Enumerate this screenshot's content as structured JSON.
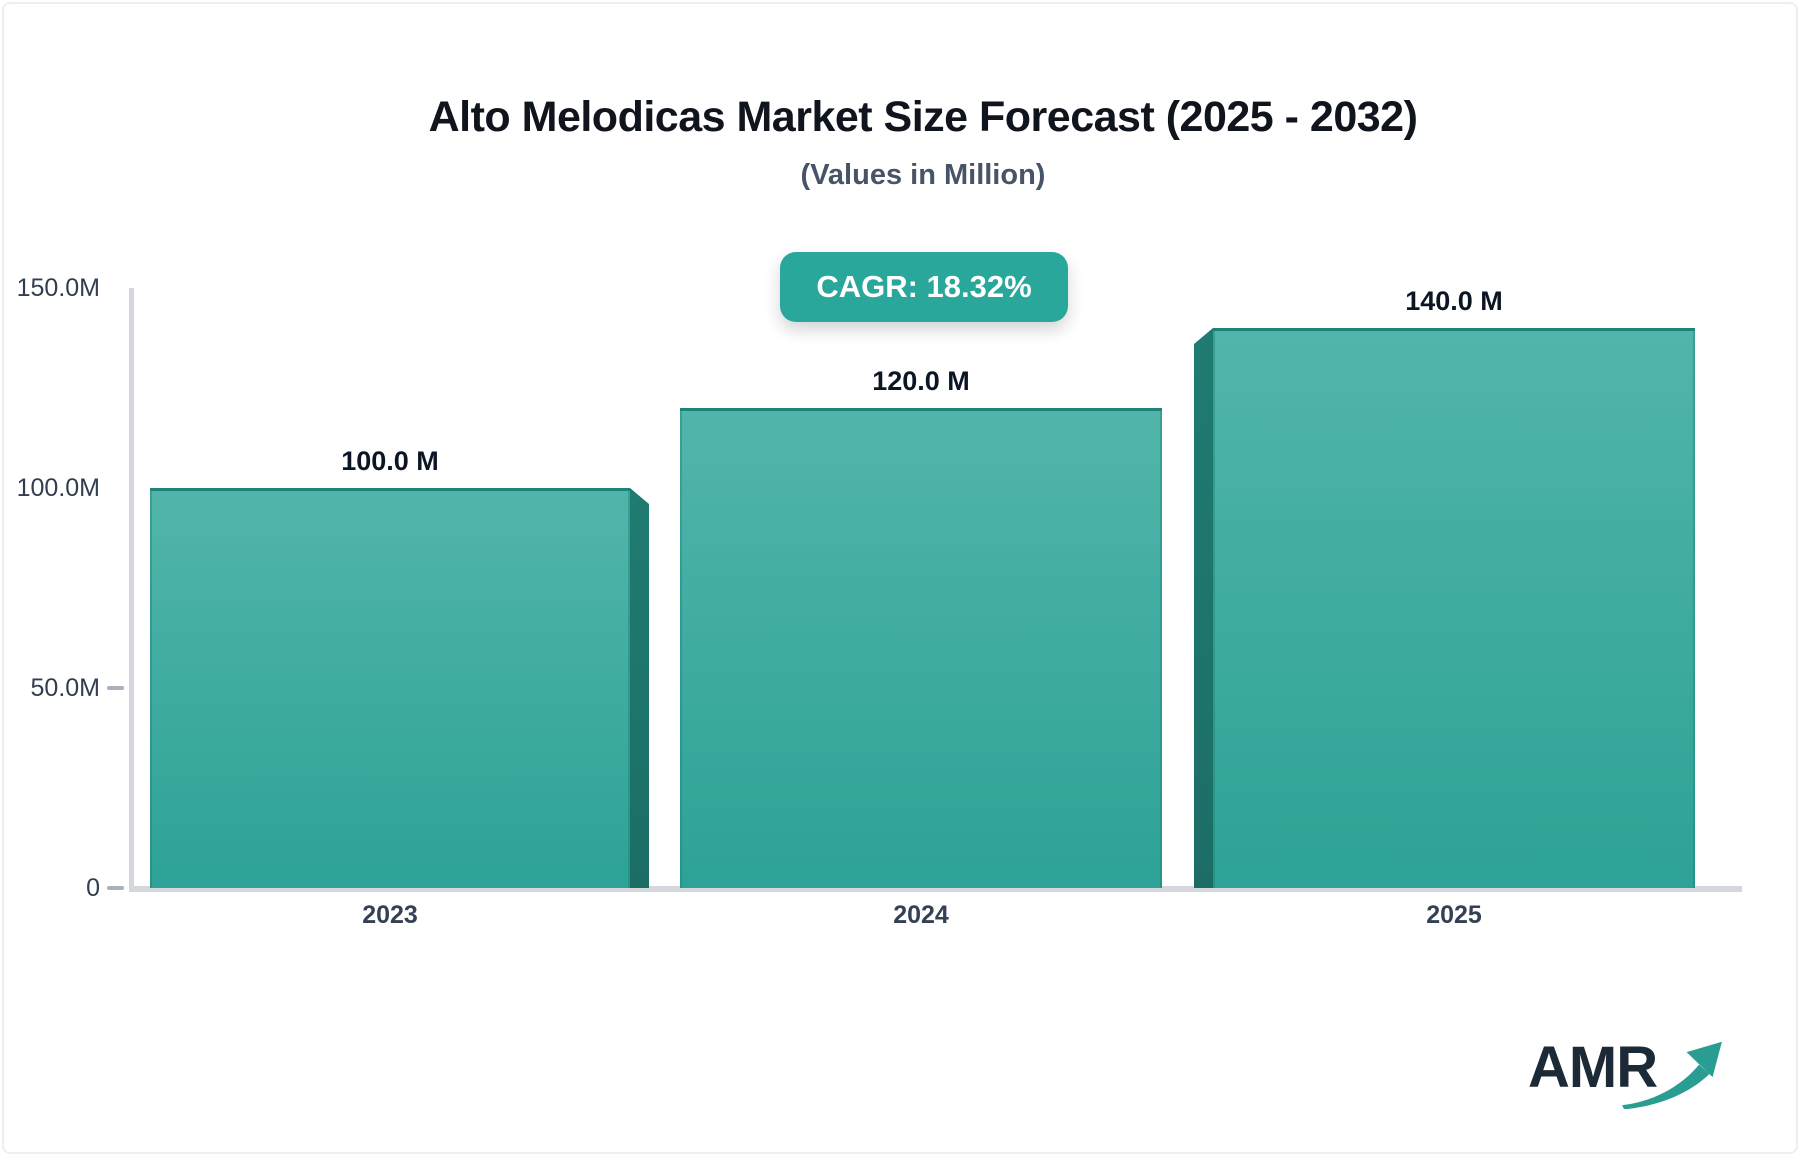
{
  "page": {
    "background": "#ffffff",
    "frame_border": "#eceef1"
  },
  "header": {
    "title": "Alto Melodicas Market Size Forecast (2025 - 2032)",
    "subtitle": "(Values in Million)"
  },
  "badge": {
    "label": "CAGR: 18.32%",
    "bg": "#2aa79b",
    "text_color": "#ffffff"
  },
  "chart_data": {
    "type": "bar",
    "title": "Alto Melodicas Market Size Forecast (2025 - 2032)",
    "subtitle": "(Values in Million)",
    "unit": "Million",
    "categories": [
      "2023",
      "2024",
      "2025"
    ],
    "values": [
      100.0,
      120.0,
      140.0
    ],
    "bar_labels": [
      "100.0 M",
      "120.0 M",
      "140.0 M"
    ],
    "cagr": "18.32%",
    "xlabel": "",
    "ylabel": "",
    "ylim": [
      0,
      150
    ],
    "ytick_values": [
      0,
      50,
      100,
      150
    ],
    "yticks": [
      "0",
      "50.0M",
      "100.0M",
      "150.0M"
    ],
    "grid": false,
    "legend": "none",
    "colors": {
      "bar_top": "#52b5ab",
      "bar_bottom": "#2da296",
      "bar_border": "#1d8578",
      "bar_side_panel": "#1f7b71",
      "axis_line": "#d4d7dc",
      "tick_text": "#313e4f"
    },
    "bevels": [
      "right",
      "none",
      "left"
    ]
  },
  "logo": {
    "text": "AMR",
    "text_color": "#1c2936",
    "arrow_color": "#2a9d93"
  }
}
